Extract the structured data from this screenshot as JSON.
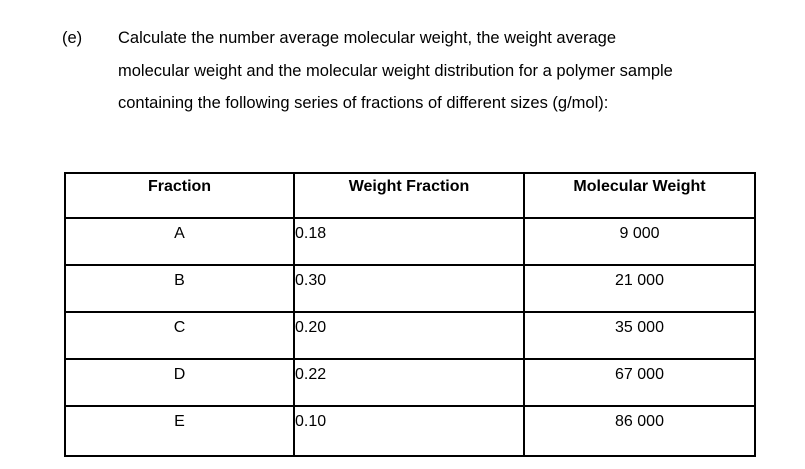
{
  "question": {
    "label": "(e)",
    "lines": [
      "Calculate the number average molecular weight, the weight average",
      "molecular weight and the molecular weight distribution for a polymer sample",
      "containing the following series of fractions of different sizes (g/mol):"
    ]
  },
  "table": {
    "headers": {
      "fraction": "Fraction",
      "weight_fraction": "Weight Fraction",
      "molecular_weight": "Molecular Weight"
    },
    "rows": [
      {
        "fraction": "A",
        "weight_fraction": "0.18",
        "molecular_weight": "9 000"
      },
      {
        "fraction": "B",
        "weight_fraction": "0.30",
        "molecular_weight": "21 000"
      },
      {
        "fraction": "C",
        "weight_fraction": "0.20",
        "molecular_weight": "35 000"
      },
      {
        "fraction": "D",
        "weight_fraction": "0.22",
        "molecular_weight": "67 000"
      },
      {
        "fraction": "E",
        "weight_fraction": "0.10",
        "molecular_weight": "86 000"
      }
    ]
  },
  "colors": {
    "text": "#000000",
    "background": "#ffffff",
    "border": "#000000"
  }
}
